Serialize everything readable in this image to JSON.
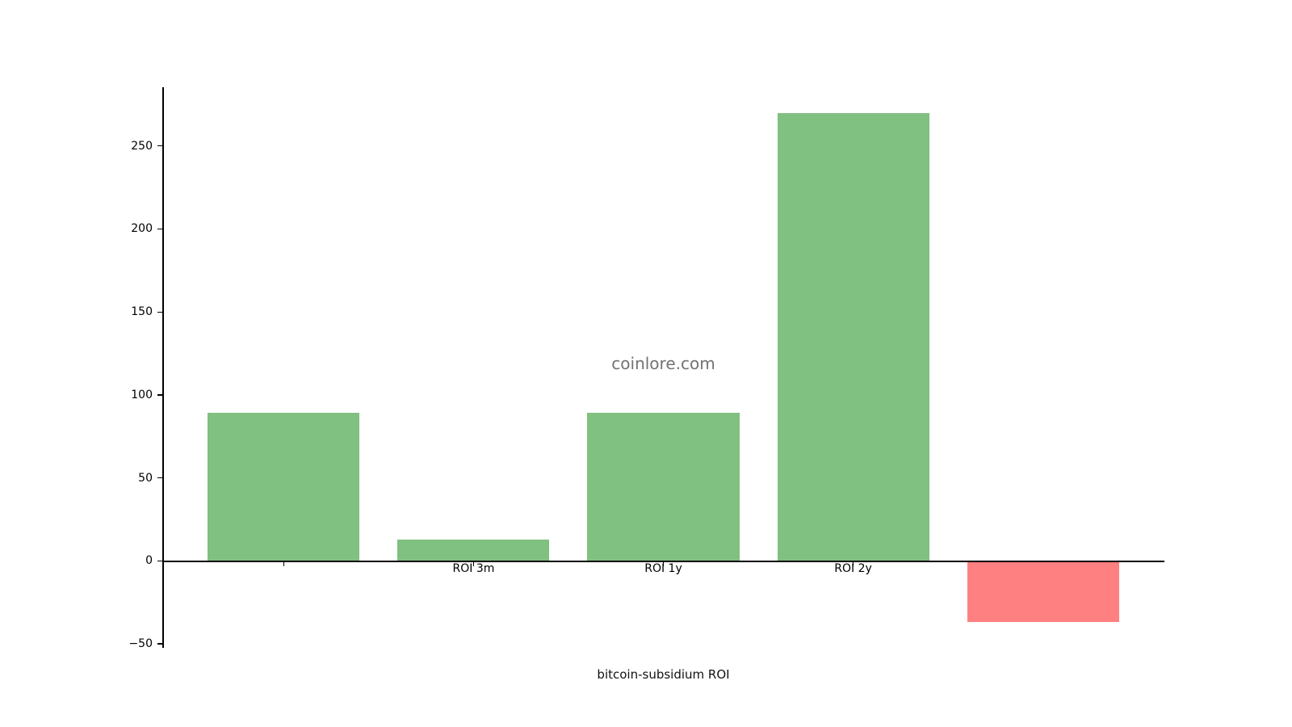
{
  "watermark": "coinlore.com",
  "chart_data": {
    "type": "bar",
    "title": "bitcoin-subsidium ROI",
    "categories": [
      "",
      "ROI 3m",
      "ROI 1y",
      "ROI 2y",
      ""
    ],
    "values": [
      89,
      13,
      89,
      270,
      -37
    ],
    "yticks": [
      250,
      200,
      150,
      100,
      50,
      0,
      -50
    ],
    "ytick_labels": [
      "250",
      "200",
      "150",
      "100",
      "50",
      "0",
      "−50"
    ],
    "ylim": [
      -52.4,
      285.4
    ],
    "xlim": [
      -0.64,
      4.64
    ],
    "bar_width": 0.8,
    "positive_color": "#80c080",
    "negative_color": "#ff8080",
    "axis_color": "#000000",
    "watermark_color": "#737373",
    "grid": false,
    "legend_position": "none",
    "xlabel": "",
    "ylabel": ""
  }
}
